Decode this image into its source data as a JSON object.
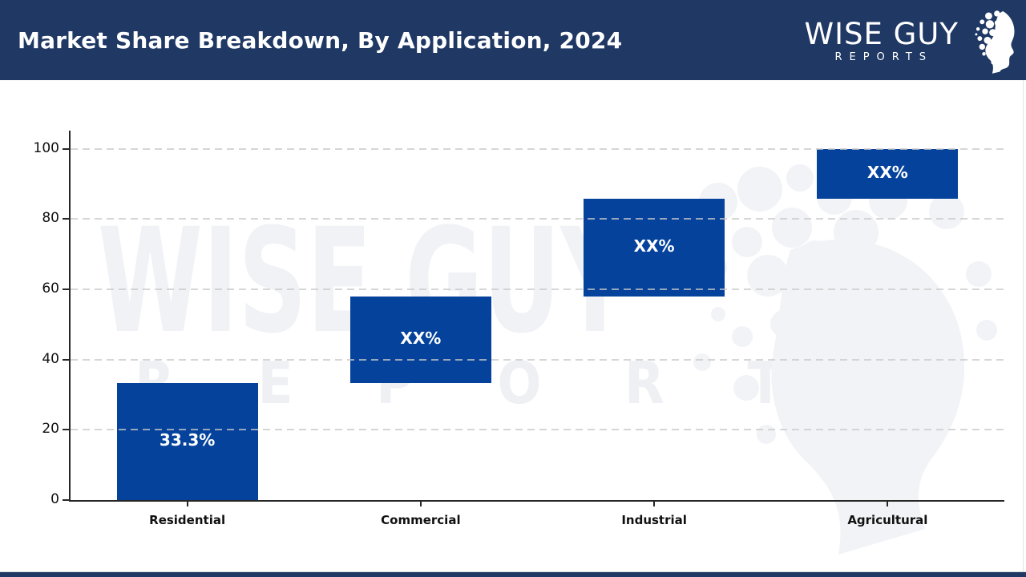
{
  "header": {
    "title": "Market Share Breakdown, By Application, 2024",
    "logo": {
      "line1": "WISE GUY",
      "line2": "REPORTS"
    }
  },
  "watermark": {
    "line1": "WISE GUY",
    "line2": "R E P O R T S"
  },
  "colors": {
    "header_bg": "#1f3864",
    "footer_bg": "#1f3864",
    "bar": "#04429c",
    "bar_label": "#ffffff",
    "axis": "#262626",
    "gridline": "#c9c9c9",
    "watermark": "#f0f2f6"
  },
  "chart_data": {
    "type": "bar",
    "subtype": "floating-waterfall",
    "title": "Market Share Breakdown, By Application, 2024",
    "xlabel": "",
    "ylabel": "",
    "categories": [
      "Residential",
      "Commercial",
      "Industrial",
      "Agricultural"
    ],
    "segments": [
      {
        "category": "Residential",
        "start": 0,
        "end": 33.3,
        "label": "33.3%"
      },
      {
        "category": "Commercial",
        "start": 33.3,
        "end": 58.0,
        "label": "XX%"
      },
      {
        "category": "Industrial",
        "start": 58.0,
        "end": 85.8,
        "label": "XX%"
      },
      {
        "category": "Agricultural",
        "start": 85.8,
        "end": 100,
        "label": "XX%"
      }
    ],
    "ylim": [
      0,
      105
    ],
    "yticks": [
      0,
      20,
      40,
      60,
      80,
      100
    ],
    "grid": "horizontal-dashed",
    "legend": "none"
  }
}
